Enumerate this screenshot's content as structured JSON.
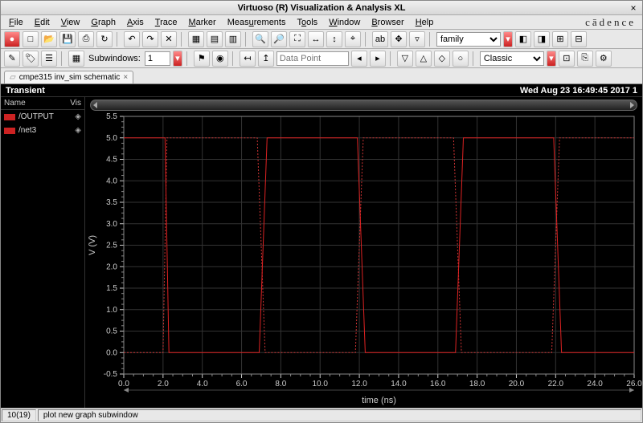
{
  "window": {
    "title": "Virtuoso (R) Visualization & Analysis XL"
  },
  "brand": "cādence",
  "menus": [
    "File",
    "Edit",
    "View",
    "Graph",
    "Axis",
    "Trace",
    "Marker",
    "Measurements",
    "Tools",
    "Window",
    "Browser",
    "Help"
  ],
  "toolbar1": {
    "family_select": "family",
    "icons": [
      "new",
      "open",
      "save",
      "sep",
      "undo",
      "redo",
      "sep",
      "grid",
      "zoom-in",
      "zoom-out",
      "zoom-full",
      "zoom-x",
      "zoom-y",
      "zoom-area",
      "sep",
      "snap",
      "crosshair",
      "ruler"
    ]
  },
  "toolbar2": {
    "subwindows_label": "Subwindows:",
    "subwindows_value": "1",
    "data_point_placeholder": "Data Point",
    "classic_select": "Classic"
  },
  "tab": {
    "label": "cmpe315 inv_sim schematic"
  },
  "header": {
    "left": "Transient",
    "right": "Wed Aug 23 16:49:45 2017  1"
  },
  "legend": {
    "cols": {
      "name": "Name",
      "vis": "Vis"
    },
    "items": [
      {
        "name": "/OUTPUT",
        "color": "#cc2222",
        "vis": "◈"
      },
      {
        "name": "/net3",
        "color": "#cc2222",
        "vis": "◈"
      }
    ]
  },
  "chart": {
    "type": "line",
    "xlabel": "time (ns)",
    "ylabel": "V (V)",
    "xlim": [
      0,
      26
    ],
    "ylim": [
      -0.5,
      5.5
    ],
    "xtick_step": 2.0,
    "ytick_step": 0.5,
    "background_color": "#000000",
    "grid_color": "#333333",
    "axis_color": "#888888",
    "text_color": "#cccccc",
    "label_fontsize": 10,
    "minor_ticks_per_major": 4,
    "series": [
      {
        "name": "/net3",
        "color": "#cc3333",
        "line_width": 1,
        "dash": "2,2",
        "x": [
          0,
          2,
          2.2,
          6.8,
          7,
          7.2,
          11.8,
          12,
          12.2,
          16.8,
          17,
          17.2,
          21.8,
          22,
          22.2,
          26
        ],
        "y": [
          0,
          0,
          5,
          5,
          2.5,
          0,
          0,
          2.5,
          5,
          5,
          2.5,
          0,
          0,
          2.5,
          5,
          5
        ]
      },
      {
        "name": "/OUTPUT",
        "color": "#dd2222",
        "line_width": 1,
        "x": [
          0,
          2.1,
          2.3,
          6.9,
          7.1,
          7.3,
          11.9,
          12.1,
          12.3,
          16.9,
          17.1,
          17.3,
          21.9,
          22.1,
          22.3,
          26
        ],
        "y": [
          5,
          5,
          0,
          0,
          2.5,
          5,
          5,
          2.5,
          0,
          0,
          2.5,
          5,
          5,
          2.5,
          0,
          0
        ]
      }
    ]
  },
  "status": {
    "left": "10(19)",
    "right": "plot new graph subwindow"
  }
}
